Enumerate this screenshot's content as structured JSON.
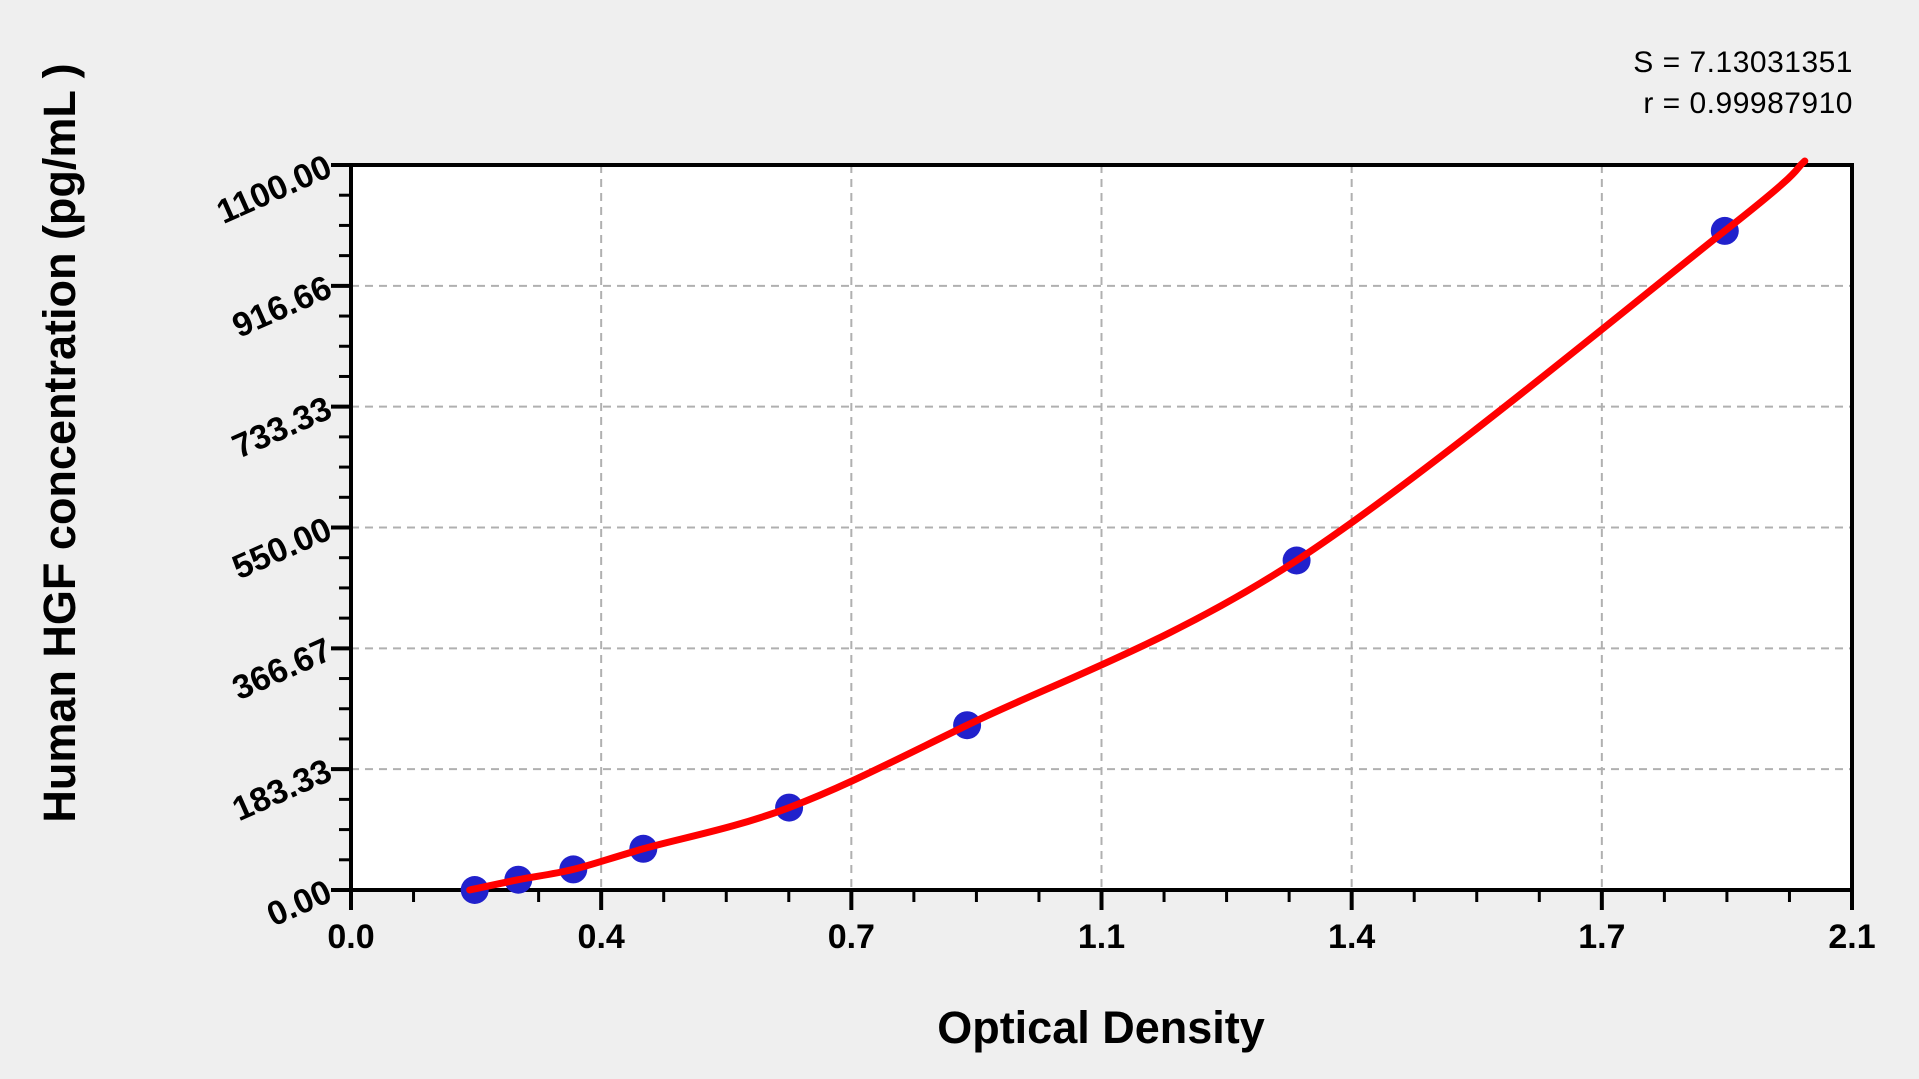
{
  "chart_data": {
    "type": "scatter",
    "title": "",
    "xlabel": "Optical Density",
    "ylabel": "Human HGF concentration (pg/mL )",
    "x_range": [
      0,
      2.1
    ],
    "y_range": [
      0,
      1100
    ],
    "x_ticks": {
      "values": [
        0,
        0.35,
        0.7,
        1.05,
        1.4,
        1.75,
        2.1
      ],
      "labels": [
        "0.0",
        "0.4",
        "0.7",
        "1.1",
        "1.4",
        "1.7",
        "2.1"
      ]
    },
    "y_ticks": {
      "values": [
        0,
        183.33,
        366.67,
        550,
        733.33,
        916.66,
        1100
      ],
      "labels": [
        "0.00",
        "183.33",
        "366.67",
        "550.00",
        "733.33",
        "916.66",
        "1100.00"
      ]
    },
    "minor_ticks_between_majors": 3,
    "grid": {
      "show": true,
      "style": "dashed",
      "at": "major-ticks"
    },
    "series": [
      {
        "name": "standard-points",
        "style": "points",
        "od": [
          0.173,
          0.234,
          0.311,
          0.409,
          0.613,
          0.862,
          1.323,
          1.922
        ],
        "concentration": [
          0,
          15.6,
          31.3,
          62.5,
          125,
          250,
          500,
          1000
        ]
      },
      {
        "name": "fitted-curve",
        "style": "line",
        "od": [
          0.166,
          0.234,
          0.311,
          0.409,
          0.613,
          0.862,
          1.323,
          1.922,
          2.034
        ],
        "concentration": [
          0,
          15.6,
          31.3,
          62.5,
          125,
          250,
          500,
          1000,
          1106
        ]
      }
    ],
    "annotations": {
      "s_line": "S = 7.13031351",
      "r_line": "r = 0.99987910"
    },
    "colors": {
      "curve": "#ff0000",
      "points": "#2121cc",
      "grid": "#b0b0b0",
      "axis": "#000000",
      "plot_bg": "#ffffff",
      "page_bg": "#efefef",
      "text": "#000000"
    }
  }
}
